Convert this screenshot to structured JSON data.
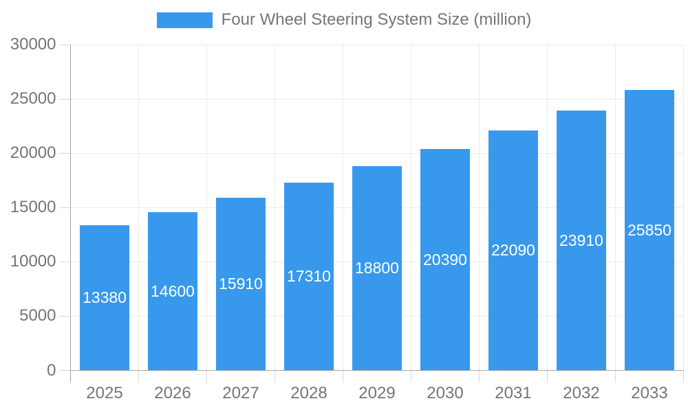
{
  "legend": {
    "label": "Four Wheel Steering System Size (million)"
  },
  "chart_data": {
    "type": "bar",
    "title": "Four Wheel Steering System Size (million)",
    "series_name": "Four Wheel Steering System Size (million)",
    "categories": [
      "2025",
      "2026",
      "2027",
      "2028",
      "2029",
      "2030",
      "2031",
      "2032",
      "2033"
    ],
    "values": [
      13380,
      14600,
      15910,
      17310,
      18800,
      20390,
      22090,
      23910,
      25850
    ],
    "value_labels": [
      "13380",
      "14600",
      "15910",
      "17310",
      "18800",
      "20390",
      "22090",
      "23910",
      "25850"
    ],
    "xlabel": "",
    "ylabel": "",
    "ylim": [
      0,
      30000
    ],
    "yticks": [
      0,
      5000,
      10000,
      15000,
      20000,
      25000,
      30000
    ],
    "ytick_interval": 5000,
    "grid": true,
    "legend_position": "top-center",
    "bar_color": "#3899EC",
    "value_label_color": "#ffffff",
    "axis_text_color": "#757575",
    "grid_color": "#ebebeb",
    "axis_line_color": "#a6a6a6",
    "background_color": "#ffffff"
  }
}
